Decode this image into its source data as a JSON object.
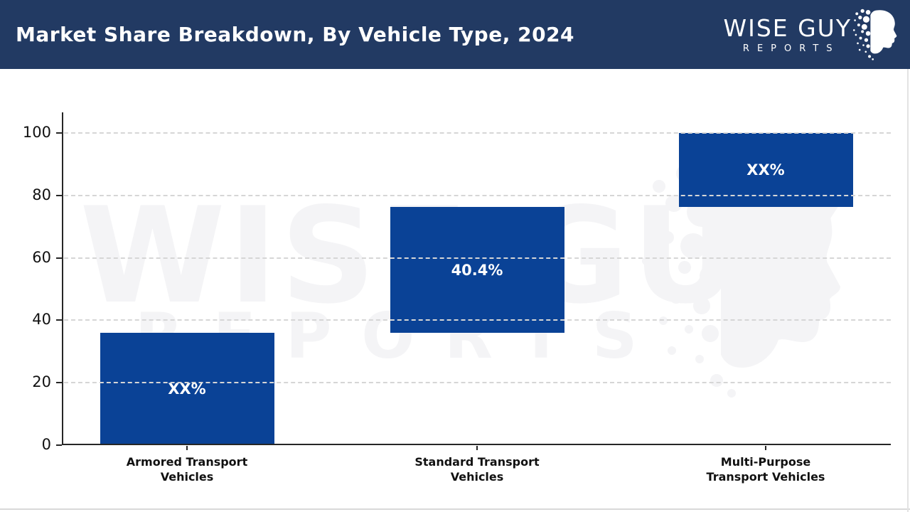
{
  "header": {
    "title": "Market Share Breakdown, By Vehicle Type, 2024",
    "logo": {
      "name": "WISE GUY",
      "sub": "REPORTS"
    }
  },
  "watermark": {
    "name": "WISE GUY",
    "sub": "REPORTS"
  },
  "icons": {
    "logo_head": "dotted-face-profile",
    "watermark_head": "dotted-face-profile"
  },
  "chart_data": {
    "type": "bar",
    "variant": "waterfall",
    "title": "Market Share Breakdown, By Vehicle Type, 2024",
    "categories": [
      "Armored Transport Vehicles",
      "Standard Transport Vehicles",
      "Multi-Purpose Transport Vehicles"
    ],
    "category_label_lines": [
      [
        "Armored Transport",
        "Vehicles"
      ],
      [
        "Standard Transport",
        "Vehicles"
      ],
      [
        "Multi-Purpose",
        "Transport Vehicles"
      ]
    ],
    "segments": [
      {
        "category": "Armored Transport Vehicles",
        "start": 0,
        "end": 35.9,
        "height": 35.9,
        "label": "XX%"
      },
      {
        "category": "Standard Transport Vehicles",
        "start": 35.9,
        "end": 76.3,
        "height": 40.4,
        "label": "40.4%"
      },
      {
        "category": "Multi-Purpose Transport Vehicles",
        "start": 76.3,
        "end": 100,
        "height": 23.7,
        "label": "XX%"
      }
    ],
    "xlabel": "",
    "ylabel": "",
    "ylim": [
      0,
      100
    ],
    "yticks": [
      0,
      20,
      40,
      60,
      80,
      100
    ],
    "grid": {
      "horizontal": true,
      "style": "dashed",
      "drawn_over_bars": true
    },
    "legend": "none",
    "colors": {
      "bar": "#0A4296",
      "bar_label": "#ffffff",
      "axis": "#262626",
      "grid": "#d6d6d6",
      "header_bg": "#223A63",
      "title_text": "#ffffff",
      "watermark": "#f4f4f6",
      "divider": "#d9d9d9"
    }
  }
}
